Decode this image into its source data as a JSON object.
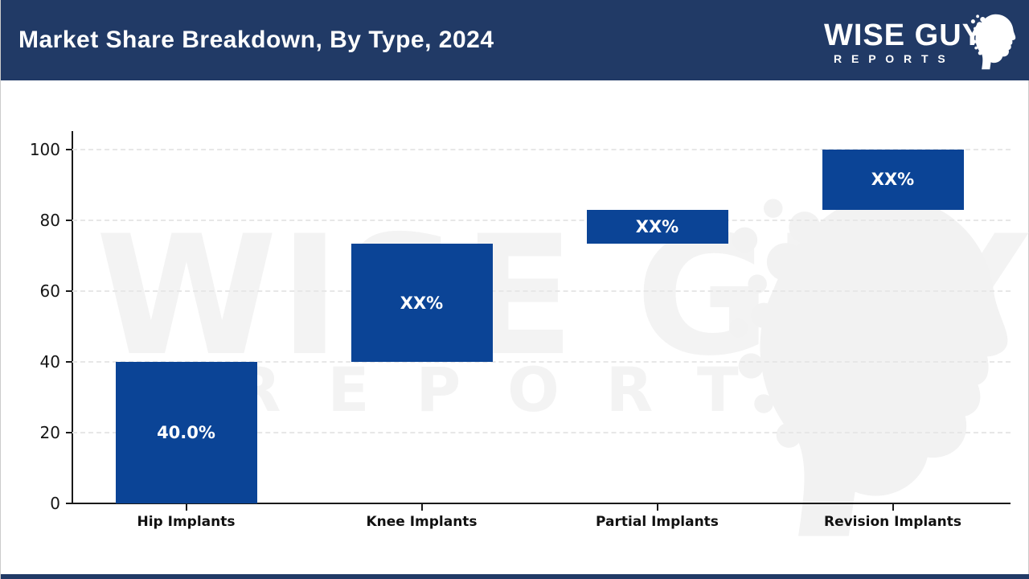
{
  "header": {
    "title": "Market Share Breakdown, By Type, 2024",
    "logo": {
      "line1": "WISE GUY",
      "line2": "R E P O R T S"
    }
  },
  "watermark": {
    "line1": "WISE GUY",
    "line2": "REPORTS"
  },
  "colors": {
    "header_bg": "#213a66",
    "bar": "#0b4496",
    "axis": "#1a1a1a",
    "grid": "#e7e7e7",
    "watermark": "#f3f3f3",
    "title_text": "#ffffff",
    "bar_label_text": "#ffffff"
  },
  "chart_data": {
    "type": "bar",
    "subtype": "waterfall",
    "title": "Market Share Breakdown, By Type, 2024",
    "categories": [
      "Hip Implants",
      "Knee Implants",
      "Partial Implants",
      "Revision Implants"
    ],
    "segments": [
      {
        "category": "Hip Implants",
        "start": 0,
        "end": 40,
        "label": "40.0%"
      },
      {
        "category": "Knee Implants",
        "start": 40,
        "end": 73.3,
        "label": "XX%"
      },
      {
        "category": "Partial Implants",
        "start": 73.3,
        "end": 83,
        "label": "XX%"
      },
      {
        "category": "Revision Implants",
        "start": 83,
        "end": 100,
        "label": "XX%"
      }
    ],
    "xlabel": "",
    "ylabel": "",
    "ylim": [
      0,
      105
    ],
    "yticks": [
      0,
      20,
      40,
      60,
      80,
      100
    ],
    "grid": "horizontal-dashed",
    "legend": "none",
    "bar_color": "#0b4496"
  }
}
